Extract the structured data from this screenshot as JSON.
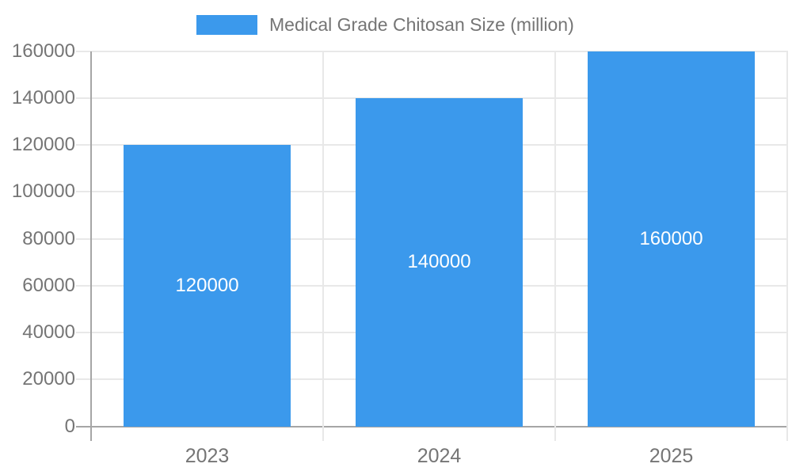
{
  "chart_data": {
    "type": "bar",
    "title": "Medical Grade Chitosan Size (million)",
    "legend": {
      "label": "Medical Grade Chitosan Size (million)",
      "position": "top"
    },
    "categories": [
      "2023",
      "2024",
      "2025"
    ],
    "series": [
      {
        "name": "Medical Grade Chitosan Size (million)",
        "values": [
          120000,
          140000,
          160000
        ]
      }
    ],
    "data_labels": [
      "120000",
      "140000",
      "160000"
    ],
    "xlabel": "",
    "ylabel": "",
    "ylim": [
      0,
      160000
    ],
    "ytick_step": 20000,
    "ytick_labels": [
      "0",
      "20000",
      "40000",
      "60000",
      "80000",
      "100000",
      "120000",
      "140000",
      "160000"
    ],
    "grid": true,
    "legend_swatch_color": "#3B99EC",
    "colors": {
      "bar": "#3B99EC",
      "grid_line": "#e8e8e8",
      "axis_line": "#a6a6a6",
      "tick_text": "#757575",
      "legend_text": "#757575",
      "data_label_text": "#ffffff",
      "background": "#ffffff"
    }
  }
}
